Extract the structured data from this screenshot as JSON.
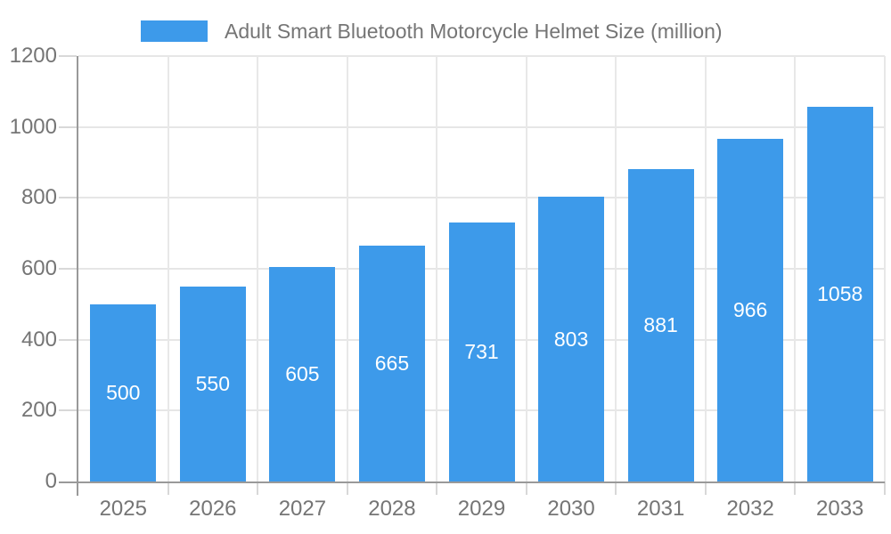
{
  "chart_data": {
    "type": "bar",
    "title": "Adult Smart Bluetooth Motorcycle Helmet Size (million)",
    "categories": [
      "2025",
      "2026",
      "2027",
      "2028",
      "2029",
      "2030",
      "2031",
      "2032",
      "2033"
    ],
    "values": [
      500,
      550,
      605,
      665,
      731,
      803,
      881,
      966,
      1058
    ],
    "xlabel": "",
    "ylabel": "",
    "ylim": [
      0,
      1200
    ],
    "y_ticks": [
      0,
      200,
      400,
      600,
      800,
      1000,
      1200
    ],
    "grid": true,
    "legend_position": "top",
    "colors": {
      "bar": "#3D9AEA",
      "axis": "#999999",
      "gridline": "#E6E6E6",
      "tick": "#D8D8D8",
      "text": "#757575",
      "bar_label": "#FFFFFF"
    }
  }
}
